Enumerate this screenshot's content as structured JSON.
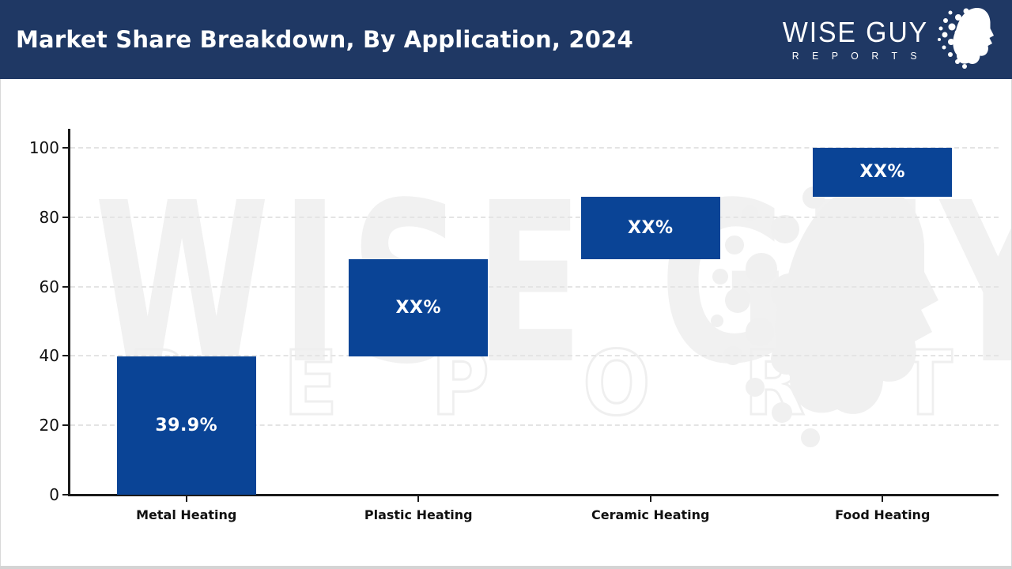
{
  "header": {
    "title": "Market Share Breakdown, By Application, 2024",
    "bg_color": "#1F3864",
    "logo": {
      "line1": "WISE GUY",
      "line2": "R E P O R T S"
    }
  },
  "watermark": {
    "line1": "WISE GUY",
    "line2": "R E P O R T S"
  },
  "chart_data": {
    "type": "bar",
    "subtype": "waterfall",
    "title": "Market Share Breakdown, By Application, 2024",
    "xlabel": "",
    "ylabel": "",
    "categories": [
      "Metal Heating",
      "Plastic Heating",
      "Ceramic Heating",
      "Food Heating"
    ],
    "segments": [
      {
        "category": "Metal Heating",
        "start": 0,
        "end": 39.9,
        "value": 39.9,
        "label": "39.9%"
      },
      {
        "category": "Plastic Heating",
        "start": 39.9,
        "end": 67.9,
        "value": 28.0,
        "label": "XX%"
      },
      {
        "category": "Ceramic Heating",
        "start": 67.9,
        "end": 85.9,
        "value": 18.0,
        "label": "XX%"
      },
      {
        "category": "Food Heating",
        "start": 85.9,
        "end": 100,
        "value": 14.1,
        "label": "XX%"
      }
    ],
    "yticks": [
      0,
      20,
      40,
      60,
      80,
      100
    ],
    "ytick_labels": [
      "0",
      "20",
      "40",
      "60",
      "80",
      "100"
    ],
    "ylim": [
      0,
      105
    ],
    "bar_color": "#0A4496",
    "label_color": "#FFFFFF",
    "grid": "horizontal-dashed",
    "legend": "none"
  }
}
